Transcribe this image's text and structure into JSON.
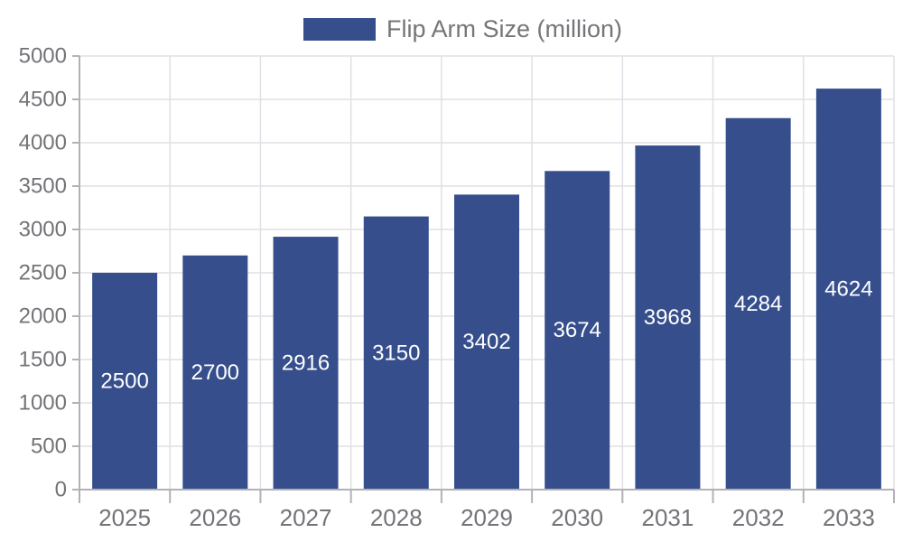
{
  "legend": {
    "label": "Flip Arm Size (million)"
  },
  "chart_data": {
    "type": "bar",
    "title": "Flip Arm Size (million)",
    "series_name": "Flip Arm Size (million)",
    "categories": [
      "2025",
      "2026",
      "2027",
      "2028",
      "2029",
      "2030",
      "2031",
      "2032",
      "2033"
    ],
    "values": [
      2500,
      2700,
      2916,
      3150,
      3402,
      3674,
      3968,
      4284,
      4624
    ],
    "value_labels": [
      "2500",
      "2700",
      "2916",
      "3150",
      "3402",
      "3674",
      "3968",
      "4284",
      "4624"
    ],
    "xlabel": "",
    "ylabel": "",
    "ylim": [
      0,
      5000
    ],
    "yticks": [
      0,
      500,
      1000,
      1500,
      2000,
      2500,
      3000,
      3500,
      4000,
      4500,
      5000
    ],
    "grid": true,
    "legend_position": "top-center",
    "colors": {
      "bar": "#364F8C",
      "value_label": "#FFFFFF",
      "grid_line": "#E0E0E6",
      "axis_line": "#B1B1B8",
      "tick_label": "#737378",
      "legend_text": "#75757A",
      "background": "#FFFFFF"
    }
  }
}
